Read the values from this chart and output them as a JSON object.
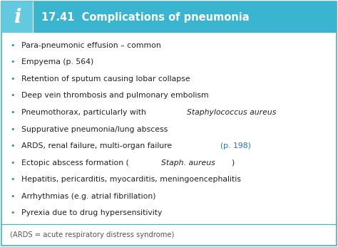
{
  "title_full": "17.41  Complications of pneumonia",
  "header_bg": "#3ab5cf",
  "icon_bg": "#62c9de",
  "icon_letter": "i",
  "body_bg": "#ffffff",
  "border_color": "#3ab5cf",
  "bullet_color": "#2a8fa8",
  "text_color": "#222222",
  "link_color": "#2272b8",
  "footer_text": "(ARDS = acute respiratory distress syndrome)",
  "bullet_items": [
    {
      "parts": [
        {
          "text": "Para-pneumonic effusion – common",
          "style": "normal"
        }
      ]
    },
    {
      "parts": [
        {
          "text": "Empyema (p. 564)",
          "style": "normal"
        }
      ]
    },
    {
      "parts": [
        {
          "text": "Retention of sputum causing lobar collapse",
          "style": "normal"
        }
      ]
    },
    {
      "parts": [
        {
          "text": "Deep vein thrombosis and pulmonary embolism",
          "style": "normal"
        }
      ]
    },
    {
      "parts": [
        {
          "text": "Pneumothorax, particularly with ",
          "style": "normal"
        },
        {
          "text": "Staphylococcus aureus",
          "style": "italic"
        }
      ]
    },
    {
      "parts": [
        {
          "text": "Suppurative pneumonia/lung abscess",
          "style": "normal"
        }
      ]
    },
    {
      "parts": [
        {
          "text": "ARDS, renal failure, multi-organ failure ",
          "style": "normal"
        },
        {
          "text": "(p. 198)",
          "style": "link"
        }
      ]
    },
    {
      "parts": [
        {
          "text": "Ectopic abscess formation (",
          "style": "normal"
        },
        {
          "text": "Staph. aureus",
          "style": "italic"
        },
        {
          "text": ")",
          "style": "normal"
        }
      ]
    },
    {
      "parts": [
        {
          "text": "Hepatitis, pericarditis, myocarditis, meningoencephalitis",
          "style": "normal"
        }
      ]
    },
    {
      "parts": [
        {
          "text": "Arrhythmias (e.g. atrial fibrillation)",
          "style": "normal"
        }
      ]
    },
    {
      "parts": [
        {
          "text": "Pyrexia due to drug hypersensitivity",
          "style": "normal"
        }
      ]
    }
  ]
}
